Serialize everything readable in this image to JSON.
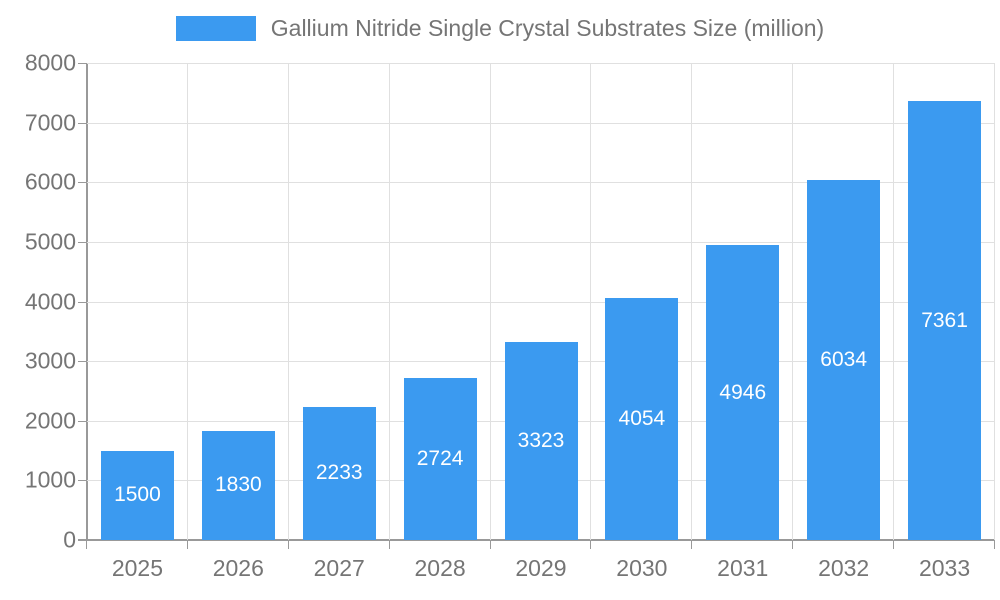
{
  "legend": {
    "label": "Gallium Nitride Single Crystal Substrates Size (million)",
    "swatch_icon": "series-color-swatch"
  },
  "colors": {
    "bar": "#3B9AF0",
    "grid": "#E0E0E0",
    "axis": "#999999",
    "tick_text": "#757575",
    "title_text": "#757575",
    "bar_label_text": "#FFFFFF",
    "background": "#FFFFFF"
  },
  "chart_data": {
    "type": "bar",
    "title": "Gallium Nitride Single Crystal Substrates Size (million)",
    "categories": [
      "2025",
      "2026",
      "2027",
      "2028",
      "2029",
      "2030",
      "2031",
      "2032",
      "2033"
    ],
    "values": [
      1500,
      1830,
      2233,
      2724,
      3323,
      4054,
      4946,
      6034,
      7361
    ],
    "series_name": "Gallium Nitride Single Crystal Substrates Size (million)",
    "xlabel": "",
    "ylabel": "",
    "ylim": [
      0,
      8000
    ],
    "yticks": [
      0,
      1000,
      2000,
      3000,
      4000,
      5000,
      6000,
      7000,
      8000
    ],
    "grid": true,
    "legend_position": "top-center",
    "value_labels": "inside-center",
    "bar_width_fraction": 0.72
  }
}
